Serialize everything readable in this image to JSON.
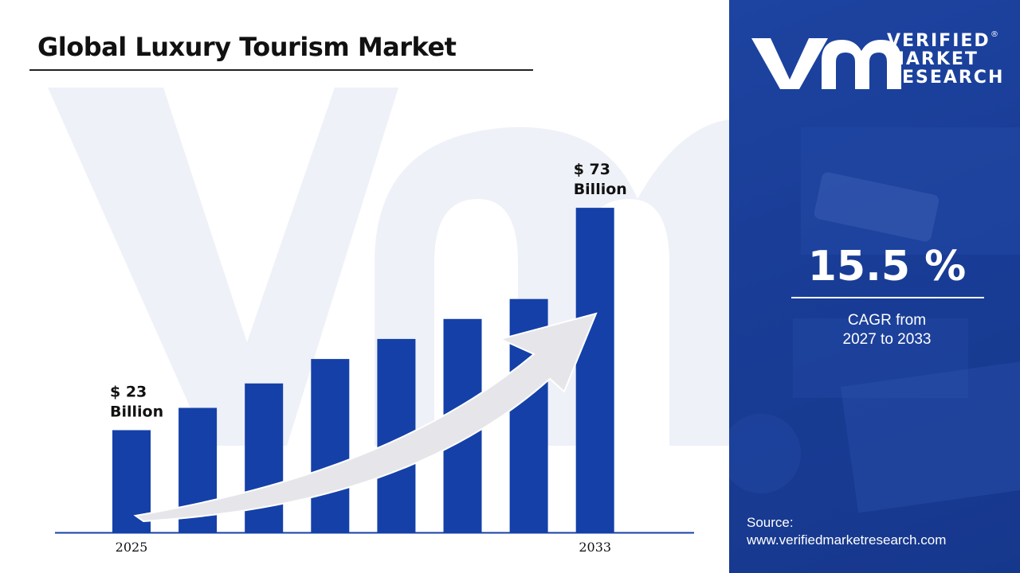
{
  "page": {
    "title": "Global Luxury Tourism Market"
  },
  "brand": {
    "line1": "VERIFIED",
    "line2": "MARKET",
    "line3": "RESEARCH",
    "registered": "®",
    "logo_color": "#ffffff"
  },
  "colors": {
    "bar": "#1440a8",
    "panel": "#1a3f9a",
    "arrow": "#e6e6ea",
    "watermark": "#eef1f8"
  },
  "cagr": {
    "value": "15.5 %",
    "label_line1": "CAGR from",
    "label_line2": "2027 to 2033"
  },
  "source": {
    "label": "Source:",
    "url": "www.verifiedmarketresearch.com"
  },
  "chart_data": {
    "type": "bar",
    "title": "Global Luxury Tourism Market",
    "categories": [
      "2025",
      "",
      "",
      "",
      "",
      "",
      "",
      "2033"
    ],
    "values": [
      23,
      28,
      33.5,
      39,
      43.5,
      48,
      52.5,
      73
    ],
    "xlabel": "",
    "ylabel": "",
    "ylim": [
      0,
      80
    ],
    "unit": "Billion",
    "grid": false,
    "legend": "none",
    "annotations": [
      {
        "index": 0,
        "line1": "$ 23",
        "line2": "Billion"
      },
      {
        "index": 7,
        "line1": "$ 73",
        "line2": "Billion"
      }
    ],
    "trend_arrow": true
  }
}
